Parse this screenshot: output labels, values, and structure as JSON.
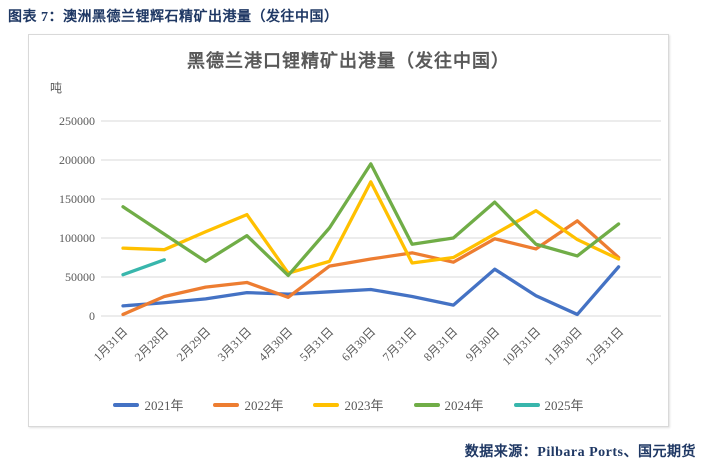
{
  "header": {
    "title": "图表 7：澳洲黑德兰锂辉石精矿出港量（发往中国）"
  },
  "chart": {
    "title": "黑德兰港口锂精矿出港量（发往中国）",
    "unit_label": "吨"
  },
  "footer": {
    "source": "数据来源：Pilbara Ports、国元期货"
  },
  "colors": {
    "header_text": "#1F3864",
    "chart_text": "#595959",
    "gridline": "#d9d9d9",
    "border": "#d9d9d9"
  },
  "chart_data": {
    "type": "line",
    "title": "黑德兰港口锂精矿出港量（发往中国）",
    "ylabel": "吨",
    "ylim": [
      0,
      250000
    ],
    "ytick_interval": 50000,
    "grid": true,
    "legend_position": "bottom",
    "categories": [
      "1月31日",
      "2月28日",
      "2月29日",
      "3月31日",
      "4月30日",
      "5月31日",
      "6月30日",
      "7月31日",
      "8月31日",
      "9月30日",
      "10月31日",
      "11月30日",
      "12月31日"
    ],
    "series": [
      {
        "name": "2021年",
        "color": "#4472C4",
        "values": [
          13000,
          17000,
          22000,
          30000,
          28000,
          31000,
          34000,
          25000,
          14000,
          60000,
          26000,
          2000,
          63000
        ]
      },
      {
        "name": "2022年",
        "color": "#ED7D31",
        "values": [
          2000,
          25000,
          37000,
          43000,
          24000,
          64000,
          73000,
          81000,
          69000,
          99000,
          86000,
          122000,
          75000
        ]
      },
      {
        "name": "2023年",
        "color": "#FFC000",
        "values": [
          87000,
          85000,
          108000,
          130000,
          55000,
          70000,
          172000,
          68000,
          75000,
          105000,
          135000,
          98000,
          73000
        ]
      },
      {
        "name": "2024年",
        "color": "#70AD47",
        "values": [
          140000,
          105000,
          70000,
          103000,
          52000,
          113000,
          195000,
          92000,
          100000,
          146000,
          92000,
          77000,
          118000
        ]
      },
      {
        "name": "2025年",
        "color": "#38B6AC",
        "values": [
          53000,
          72000
        ]
      }
    ]
  }
}
